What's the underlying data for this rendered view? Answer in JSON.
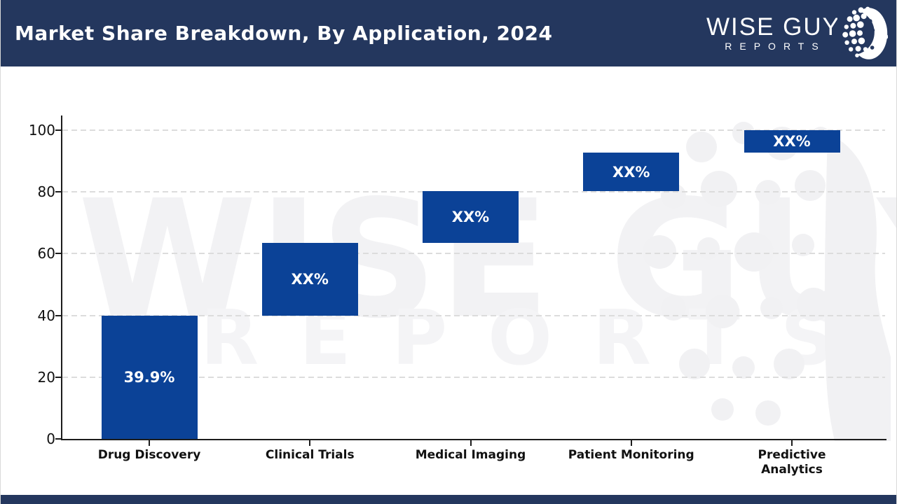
{
  "header": {
    "title": "Market Share Breakdown, By Application, 2024",
    "bg_color": "#24375e",
    "logo": {
      "line1": "WISE GUY",
      "line2": "REPORTS"
    }
  },
  "watermark": {
    "line1": "WISE GUY",
    "line2": "REPORTS"
  },
  "chart_data": {
    "type": "bar",
    "subtype": "waterfall",
    "title": "Market Share Breakdown, By Application, 2024",
    "categories": [
      "Drug Discovery",
      "Clinical Trials",
      "Medical Imaging",
      "Patient Monitoring",
      "Predictive\nAnalytics"
    ],
    "segments": [
      {
        "category": "Drug Discovery",
        "start": 0,
        "end": 39.9,
        "value_label": "39.9%"
      },
      {
        "category": "Clinical Trials",
        "start": 39.9,
        "end": 63.6,
        "value_label": "XX%"
      },
      {
        "category": "Medical Imaging",
        "start": 63.6,
        "end": 80.2,
        "value_label": "XX%"
      },
      {
        "category": "Patient Monitoring",
        "start": 80.2,
        "end": 92.8,
        "value_label": "XX%"
      },
      {
        "category": "Predictive Analytics",
        "start": 92.8,
        "end": 100,
        "value_label": "XX%"
      }
    ],
    "y_ticks": [
      0,
      20,
      40,
      60,
      80,
      100
    ],
    "ylim": [
      0,
      104.8
    ],
    "xlabel": "",
    "ylabel": "",
    "grid": "horizontal-dashed",
    "legend": "none",
    "bar_color": "#0b4297",
    "grid_color": "#dcdcdc",
    "axis_color": "#1c1c1c"
  }
}
